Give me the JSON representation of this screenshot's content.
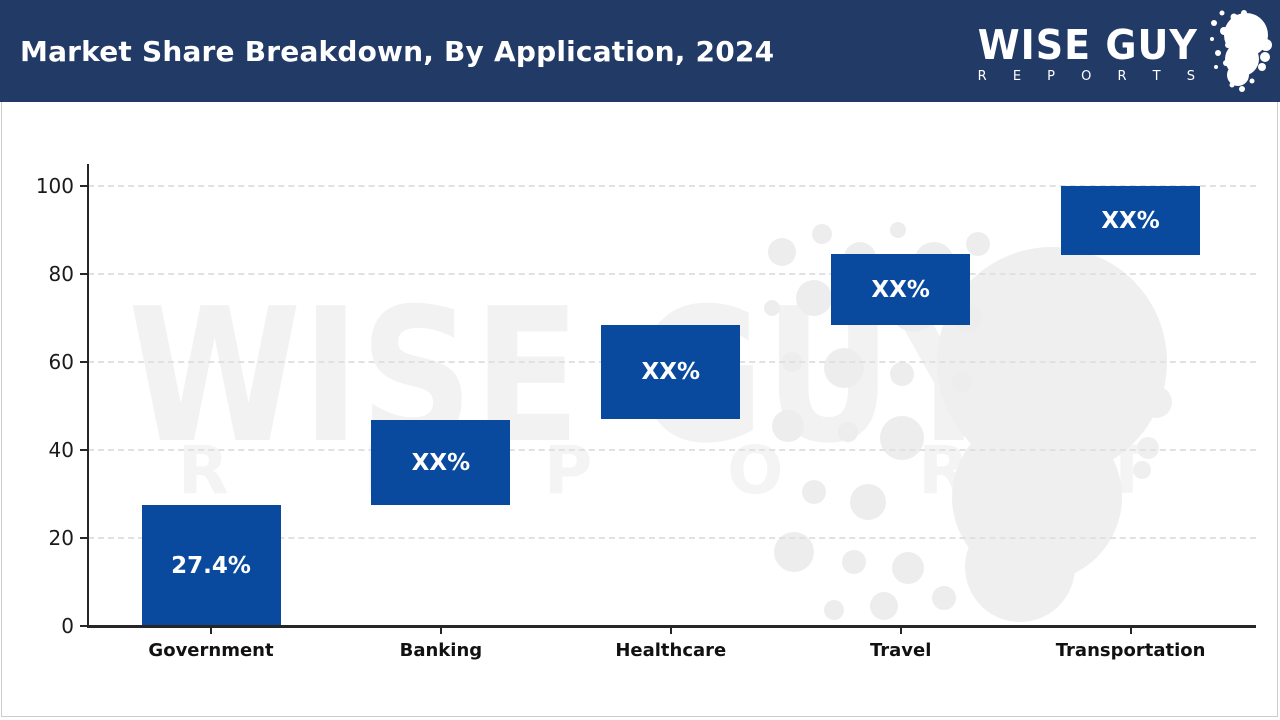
{
  "header": {
    "title": "Market Share Breakdown, By Application, 2024",
    "logo": {
      "wordmark": "WISE GUY",
      "subtext": "R E P O R T S"
    }
  },
  "watermark": {
    "wordmark": "WISE GUY",
    "subtext": "R E P O R T S"
  },
  "colors": {
    "header_bg": "#213a66",
    "bar": "#0a4a9e",
    "bar_label": "#ffffff",
    "axis": "#262626",
    "gridline": "#e1e1e1",
    "card_border": "#cccccc",
    "watermark": "#f2f2f2"
  },
  "chart_data": {
    "type": "bar",
    "variant": "floating-waterfall",
    "title": "Market Share Breakdown, By Application, 2024",
    "categories": [
      "Government",
      "Banking",
      "Healthcare",
      "Travel",
      "Transportation"
    ],
    "series": [
      {
        "name": "Market share (%)",
        "segments": [
          {
            "start": 0,
            "end": 27.4
          },
          {
            "start": 27.4,
            "end": 46.8
          },
          {
            "start": 47.0,
            "end": 68.4
          },
          {
            "start": 68.4,
            "end": 84.5
          },
          {
            "start": 84.3,
            "end": 100
          }
        ]
      }
    ],
    "bar_labels": [
      "27.4%",
      "XX%",
      "XX%",
      "XX%",
      "XX%"
    ],
    "xlabel": "",
    "ylabel": "",
    "yticks": [
      0,
      20,
      40,
      60,
      80,
      100
    ],
    "ylim": [
      0,
      105
    ],
    "grid": "horizontal-dashed",
    "legend": "none"
  }
}
